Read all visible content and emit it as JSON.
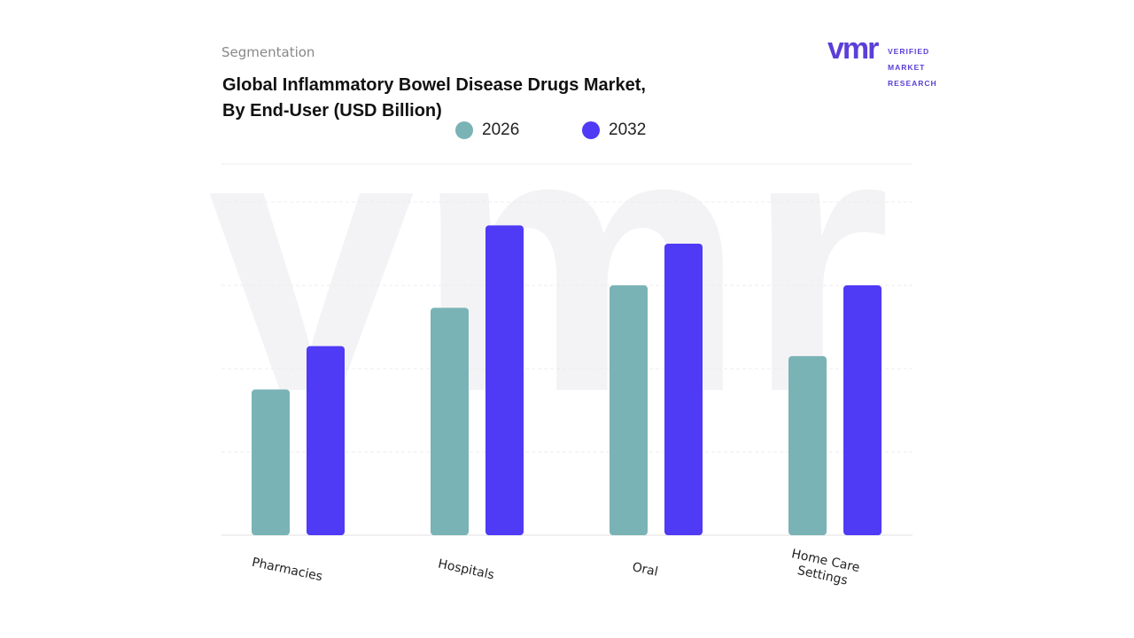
{
  "chart_data": {
    "type": "bar",
    "subtitle": "Segmentation",
    "title": "Global Inflammatory Bowel Disease Drugs Market,\nBy End-User (USD Billion)",
    "logo": {
      "mark": "vmr",
      "lines": [
        "VERIFIED",
        "MARKET",
        "RESEARCH"
      ]
    },
    "categories": [
      "Pharmacies",
      "Hospitals",
      "Oral",
      "Home Care\nSettings"
    ],
    "series": [
      {
        "name": "2026",
        "color": "#7ab3b5",
        "values": [
          1.75,
          2.73,
          3.0,
          2.15
        ]
      },
      {
        "name": "2032",
        "color": "#4f3af5",
        "values": [
          2.27,
          3.72,
          3.5,
          3.0
        ]
      }
    ],
    "ylim": [
      0,
      4.5
    ],
    "yticks": [
      0,
      1,
      2,
      3,
      4
    ],
    "grid": true,
    "tick_labels": false
  }
}
